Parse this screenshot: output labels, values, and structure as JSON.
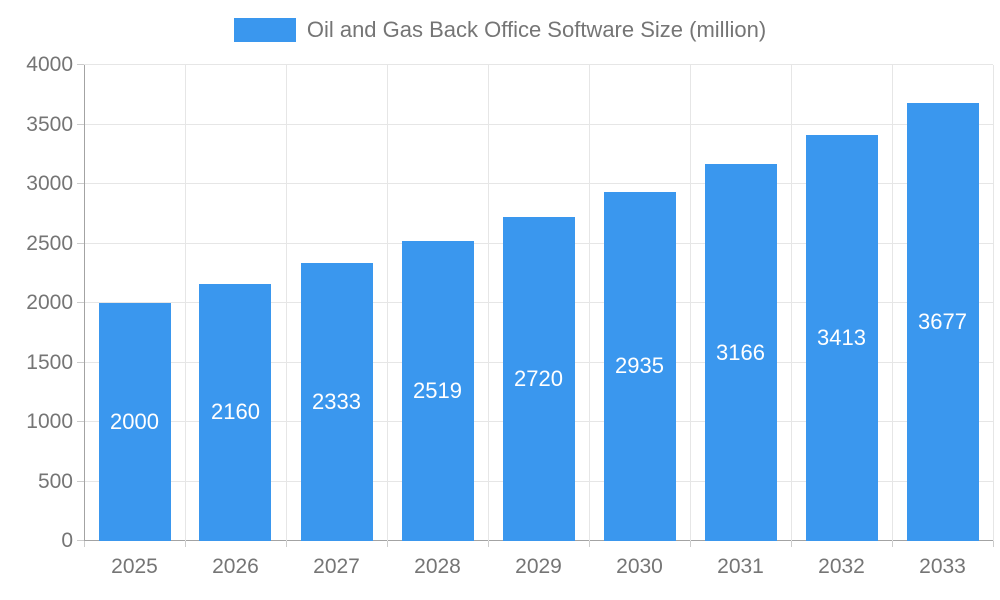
{
  "legend": {
    "label": "Oil and Gas Back Office Software Size (million)"
  },
  "colors": {
    "background": "#FFFFFF",
    "bar": "#3A97EE",
    "grid": "#E6E6E6",
    "axis": "#A3A3A3",
    "tick": "#CCCCCC",
    "text": "#757575",
    "bar_label": "#FFFFFF"
  },
  "chart_data": {
    "type": "bar",
    "title": "Oil and Gas Back Office Software Size (million)",
    "categories": [
      "2025",
      "2026",
      "2027",
      "2028",
      "2029",
      "2030",
      "2031",
      "2032",
      "2033"
    ],
    "values": [
      2000,
      2160,
      2333,
      2519,
      2720,
      2935,
      3166,
      3413,
      3677
    ],
    "series": [
      {
        "name": "Oil and Gas Back Office Software Size (million)",
        "values": [
          2000,
          2160,
          2333,
          2519,
          2720,
          2935,
          3166,
          3413,
          3677
        ]
      }
    ],
    "xlabel": "",
    "ylabel": "",
    "ylim": [
      0,
      4000
    ],
    "yticks": [
      0,
      500,
      1000,
      1500,
      2000,
      2500,
      3000,
      3500,
      4000
    ],
    "grid": true,
    "legend_position": "top",
    "value_labels": "inside-center"
  }
}
